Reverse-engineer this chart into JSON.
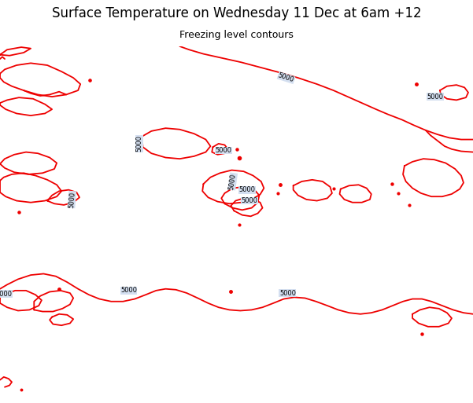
{
  "title": "Surface Temperature on Wednesday 11 Dec at 6am +12",
  "subtitle": "Freezing level contours",
  "title_fontsize": 12,
  "subtitle_fontsize": 9,
  "map_bg": "#d4dff0",
  "panel_bg": "#ffffff",
  "header_bg": "#ffffff",
  "contour_color": "#ee0000",
  "grid_color": "#b8c8e0",
  "contour_linewidth": 1.3,
  "label_fontsize": 6.5,
  "fig_width": 6.01,
  "fig_height": 5.13,
  "dpi": 100
}
